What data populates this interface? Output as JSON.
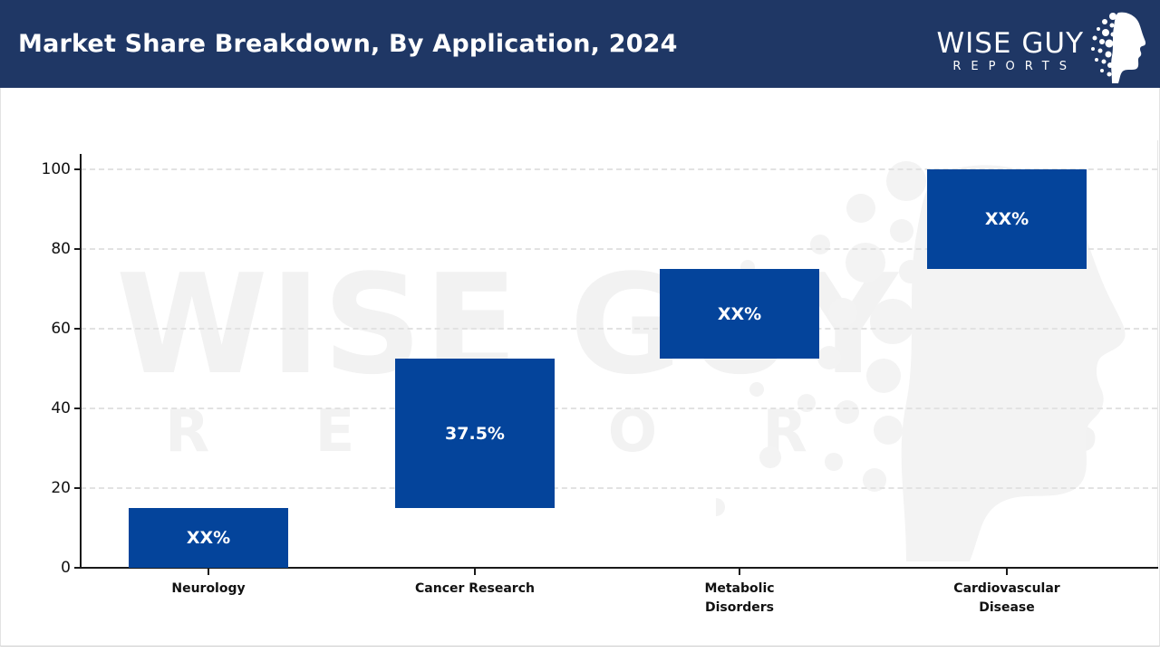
{
  "header": {
    "title": "Market Share Breakdown, By Application, 2024",
    "bg_color": "#1f3765",
    "logo": {
      "name": "WISE GUY",
      "sub": "REPORTS"
    }
  },
  "watermark": {
    "line1": "WISE GUY",
    "line2": "R E P O R T S"
  },
  "chart_data": {
    "type": "bar",
    "subtype": "floating-waterfall",
    "title": "Market Share Breakdown, By Application, 2024",
    "categories": [
      "Neurology",
      "Cancer Research",
      "Metabolic\nDisorders",
      "Cardiovascular\nDisease"
    ],
    "series": [
      {
        "name": "Market share (%)",
        "segments": [
          {
            "category": "Neurology",
            "from": 0,
            "to": 15,
            "label": "XX%"
          },
          {
            "category": "Cancer Research",
            "from": 15,
            "to": 52.5,
            "label": "37.5%"
          },
          {
            "category": "Metabolic Disorders",
            "from": 52.5,
            "to": 75,
            "label": "XX%"
          },
          {
            "category": "Cardiovascular Disease",
            "from": 75,
            "to": 100,
            "label": "XX%"
          }
        ]
      }
    ],
    "ylim": [
      0,
      100
    ],
    "yticks": [
      0,
      20,
      40,
      60,
      80,
      100
    ],
    "grid": "horizontal-dashed",
    "legend": "none",
    "bar_color": "#04449b",
    "bar_label_color": "#ffffff"
  }
}
